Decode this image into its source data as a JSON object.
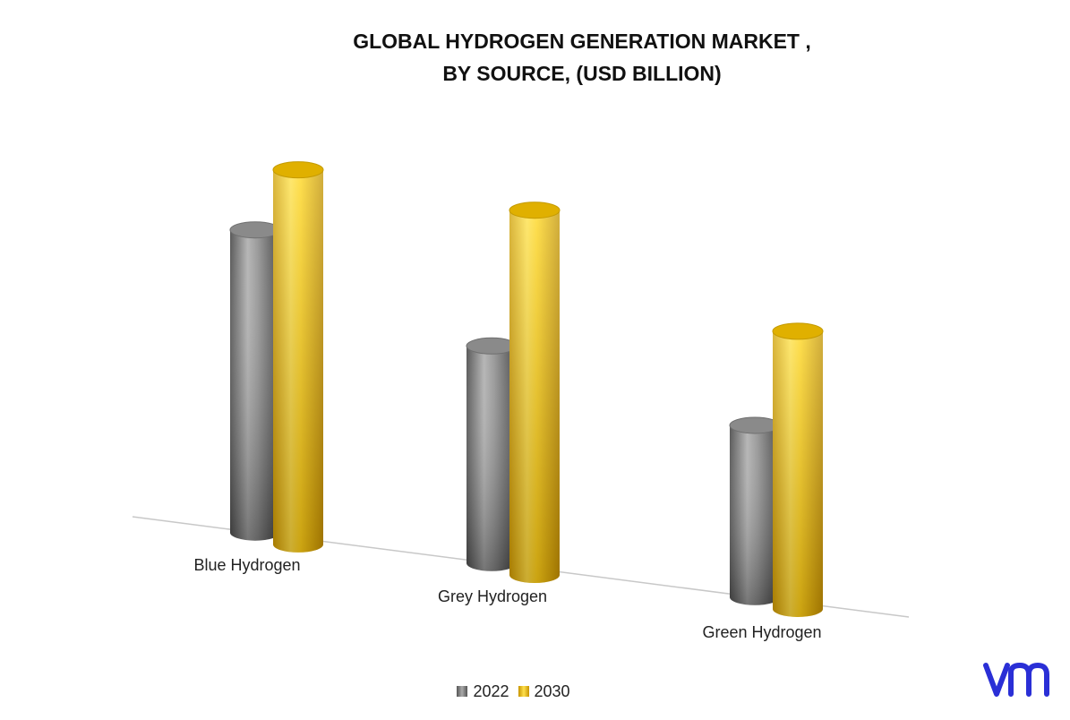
{
  "chart_data": {
    "type": "bar",
    "title": "GLOBAL HYDROGEN GENERATION MARKET ,",
    "subtitle": "BY SOURCE, (USD BILLION)",
    "categories": [
      "Blue Hydrogen",
      "Grey Hydrogen",
      "Green Hydrogen"
    ],
    "series": [
      {
        "name": "2022",
        "values": [
          40.0,
          28.7,
          22.7
        ]
      },
      {
        "name": "2030",
        "values": [
          49.5,
          48.2,
          36.7
        ]
      }
    ],
    "xlabel": "",
    "ylabel": "",
    "ylim": [
      0,
      55
    ],
    "grid": false,
    "legend": "bottom-center",
    "colors": {
      "2022": "#8c8c8c",
      "2030": "#f5c400"
    },
    "style": "3d-cylinder"
  },
  "logo": {
    "text": "vm",
    "color": "#2a2fd6"
  }
}
